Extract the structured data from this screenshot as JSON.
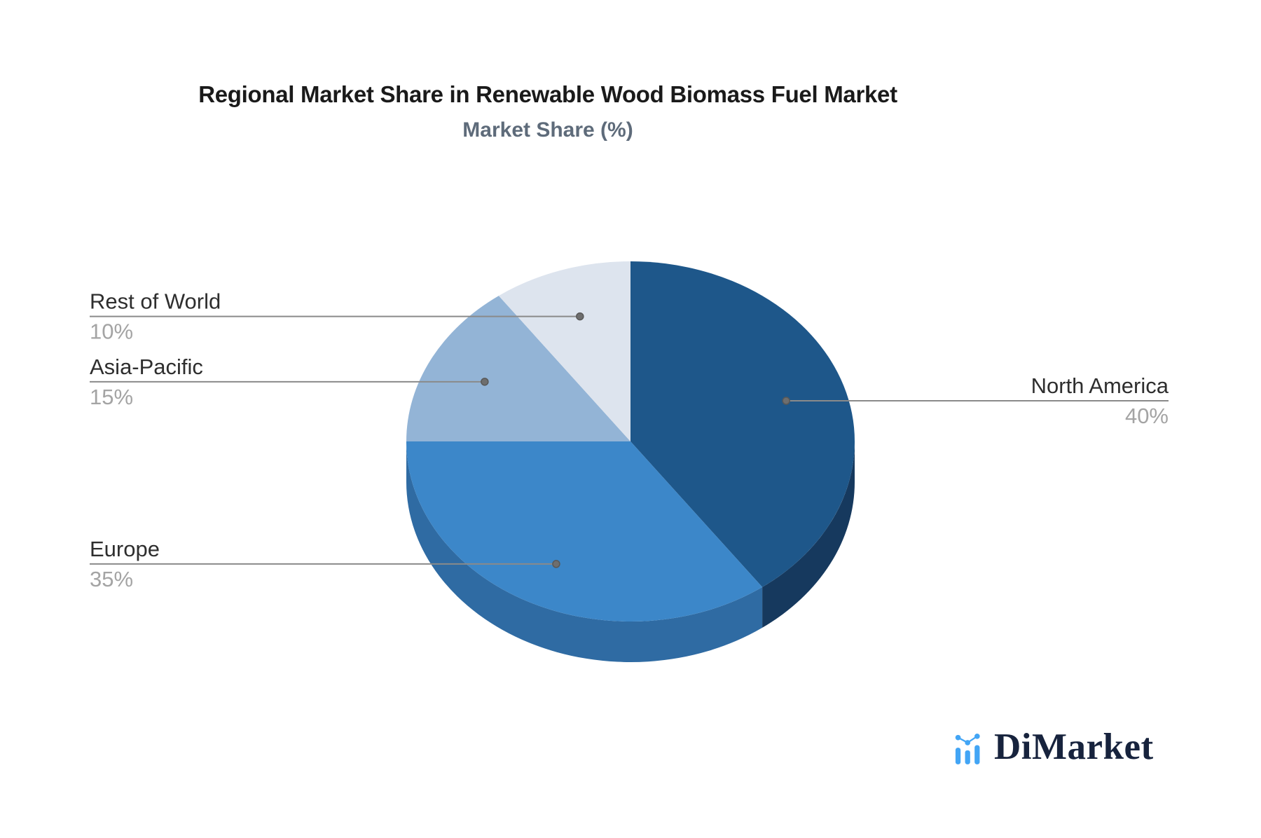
{
  "header": {
    "title": "Regional Market Share in Renewable Wood Biomass Fuel Market",
    "subtitle": "Market Share (%)",
    "title_color": "#1a1a1a",
    "subtitle_color": "#5e6b7a"
  },
  "logo": {
    "text": "DiMarket",
    "icon": "bar-chart-sparkline-icon",
    "icon_color": "#42a5f5",
    "text_color": "#17233d"
  },
  "chart_data": {
    "type": "pie",
    "style": "3d",
    "title": "Regional Market Share in Renewable Wood Biomass Fuel Market",
    "subtitle": "Market Share (%)",
    "unit": "%",
    "categories": [
      "North America",
      "Europe",
      "Asia-Pacific",
      "Rest of World"
    ],
    "values": [
      40,
      35,
      15,
      10
    ],
    "value_labels": [
      "40%",
      "35%",
      "15%",
      "10%"
    ],
    "colors": [
      "#1e578a",
      "#3c87c9",
      "#93b4d6",
      "#dde4ee"
    ],
    "depth_colors": [
      "#16395e",
      "#2f6ba3",
      "#93b4d6",
      "#dde4ee"
    ],
    "label_sides": [
      "right",
      "left",
      "left",
      "left"
    ],
    "start_angle": "12-oclock",
    "direction": "clockwise",
    "legend": "none",
    "callout_line_color": "#8a8a8a",
    "callout_dot_color": "#6e6e6e",
    "label_text_color": "#2e2e2e",
    "value_text_color": "#a4a4a4"
  }
}
